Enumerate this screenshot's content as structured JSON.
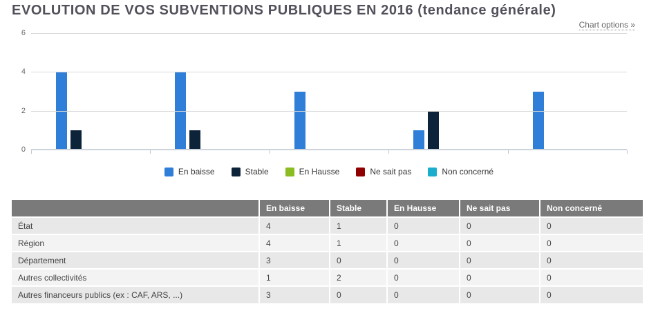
{
  "header": {
    "title": "EVOLUTION DE VOS SUBVENTIONS PUBLIQUES EN 2016 (tendance générale)",
    "chart_options_label": "Chart options »"
  },
  "chart_data": {
    "type": "bar",
    "title": "EVOLUTION DE VOS SUBVENTIONS PUBLIQUES EN 2016 (tendance générale)",
    "categories": [
      "État",
      "Région",
      "Département",
      "Autres collectivités",
      "Autres financeurs publics (ex : CAF, ARS, ...)"
    ],
    "series": [
      {
        "name": "En baisse",
        "color": "#2f7ed8",
        "values": [
          4,
          4,
          3,
          1,
          3
        ]
      },
      {
        "name": "Stable",
        "color": "#0d233a",
        "values": [
          1,
          1,
          0,
          2,
          0
        ]
      },
      {
        "name": "En Hausse",
        "color": "#8bbc21",
        "values": [
          0,
          0,
          0,
          0,
          0
        ]
      },
      {
        "name": "Ne sait pas",
        "color": "#910000",
        "values": [
          0,
          0,
          0,
          0,
          0
        ]
      },
      {
        "name": "Non concerné",
        "color": "#1aadce",
        "values": [
          0,
          0,
          0,
          0,
          0
        ]
      }
    ],
    "xlabel": "",
    "ylabel": "",
    "ylim": [
      0,
      6
    ],
    "yticks": [
      0,
      2,
      4,
      6
    ],
    "grid": true,
    "legend_position": "bottom",
    "x_axis_category_labels_visible": false
  },
  "table": {
    "columns": [
      "",
      "En baisse",
      "Stable",
      "En Hausse",
      "Ne sait pas",
      "Non concerné"
    ],
    "rows": [
      {
        "label": "État",
        "values": [
          "4",
          "1",
          "0",
          "0",
          "0"
        ]
      },
      {
        "label": "Région",
        "values": [
          "4",
          "1",
          "0",
          "0",
          "0"
        ]
      },
      {
        "label": "Département",
        "values": [
          "3",
          "0",
          "0",
          "0",
          "0"
        ]
      },
      {
        "label": "Autres collectivités",
        "values": [
          "1",
          "2",
          "0",
          "0",
          "0"
        ]
      },
      {
        "label": "Autres financeurs publics (ex : CAF, ARS, ...)",
        "values": [
          "3",
          "0",
          "0",
          "0",
          "0"
        ]
      }
    ]
  }
}
